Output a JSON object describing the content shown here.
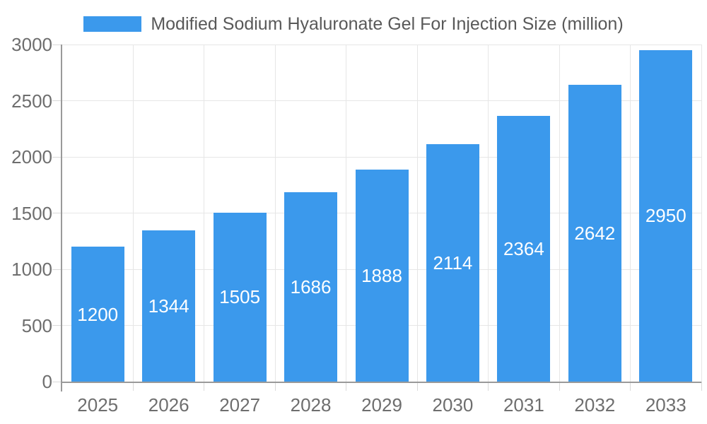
{
  "chart_data": {
    "type": "bar",
    "title": "Modified Sodium Hyaluronate Gel For Injection Size (million)",
    "legend": {
      "position": "top",
      "label": "Modified Sodium Hyaluronate Gel For Injection Size (million)"
    },
    "categories": [
      "2025",
      "2026",
      "2027",
      "2028",
      "2029",
      "2030",
      "2031",
      "2032",
      "2033"
    ],
    "series": [
      {
        "name": "Modified Sodium Hyaluronate Gel For Injection Size (million)",
        "values": [
          1200,
          1344,
          1505,
          1686,
          1888,
          2114,
          2364,
          2642,
          2950
        ]
      }
    ],
    "data_labels": {
      "show": true,
      "position": "center-inside"
    },
    "xlabel": "",
    "ylabel": "",
    "ylim": [
      0,
      3000
    ],
    "yticks": [
      0,
      500,
      1000,
      1500,
      2000,
      2500,
      3000
    ],
    "grid": true
  },
  "colors": {
    "bar": "#3B99EC",
    "bar_label": "#FFFFFF",
    "grid": "#E6E6E6",
    "tick_mark": "#D9D9D9",
    "axis": "#9A9A9A",
    "tick_text": "#6E6E6E",
    "legend_text": "#595959",
    "background": "#FFFFFF"
  }
}
